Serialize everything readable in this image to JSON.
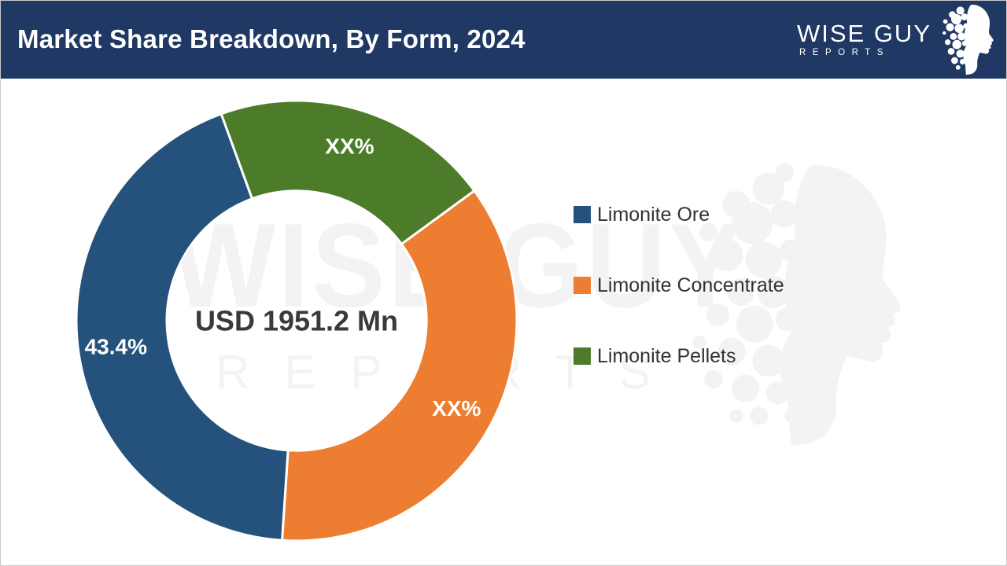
{
  "header": {
    "title": "Market Share Breakdown, By Form, 2024",
    "logo": {
      "brand": "WISE GUY",
      "sub": "REPORTS"
    }
  },
  "watermark": {
    "brand": "WISE GUY",
    "sub": "REPORTS"
  },
  "chart_data": {
    "type": "pie",
    "subtype": "donut",
    "title": "Market Share Breakdown, By Form, 2024",
    "center_label": "USD 1951.2 Mn",
    "start_angle_deg": 110,
    "direction": "counterclockwise",
    "inner_radius_ratio": 0.59,
    "legend_position": "right",
    "segments": [
      {
        "name": "Limonite Ore",
        "value_pct": 43.4,
        "label": "43.4%",
        "color": "#24527C"
      },
      {
        "name": "Limonite Concentrate",
        "value_pct": 36.1,
        "label": "XX%",
        "color": "#EC7D31"
      },
      {
        "name": "Limonite Pellets",
        "value_pct": 20.5,
        "label": "XX%",
        "color": "#4C7C2A"
      }
    ],
    "colors": {
      "header_bar": "#1F3864",
      "center_text": "#3A3A3A",
      "slice_label_text": "#FFFFFF",
      "legend_text": "#333333",
      "watermark": "#F3F3F3",
      "frame_border": "#C9C9C9"
    }
  }
}
